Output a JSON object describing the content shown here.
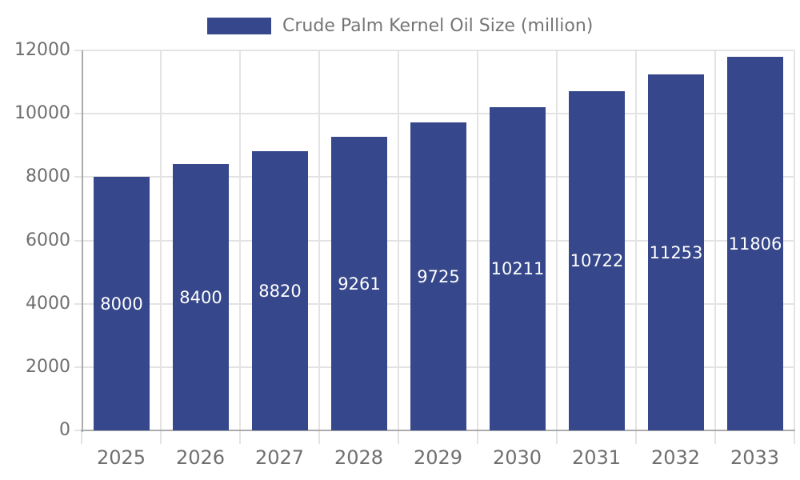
{
  "legend": {
    "series_label": "Crude Palm Kernel Oil Size (million)"
  },
  "chart_data": {
    "type": "bar",
    "title": "Crude Palm Kernel Oil Size (million)",
    "categories": [
      "2025",
      "2026",
      "2027",
      "2028",
      "2029",
      "2030",
      "2031",
      "2032",
      "2033"
    ],
    "series": [
      {
        "name": "Crude Palm Kernel Oil Size (million)",
        "values": [
          8000,
          8400,
          8820,
          9261,
          9725,
          10211,
          10722,
          11253,
          11806
        ]
      }
    ],
    "value_labels": [
      8000,
      8400,
      8820,
      9261,
      9725,
      10211,
      10722,
      11253,
      11806
    ],
    "value_label_position": "inside-center",
    "xlabel": "",
    "ylabel": "",
    "ylim": [
      0,
      12000
    ],
    "yticks": [
      0,
      2000,
      4000,
      6000,
      8000,
      10000,
      12000
    ],
    "grid": true,
    "legend_position": "top-center",
    "colors": {
      "bar": "#36478B",
      "bar_label": "#FFFFFF",
      "grid": "#E3E3E3",
      "axis_line": "#ABABAB",
      "axis_text": "#6F6F6F",
      "legend_text": "#757575"
    }
  }
}
